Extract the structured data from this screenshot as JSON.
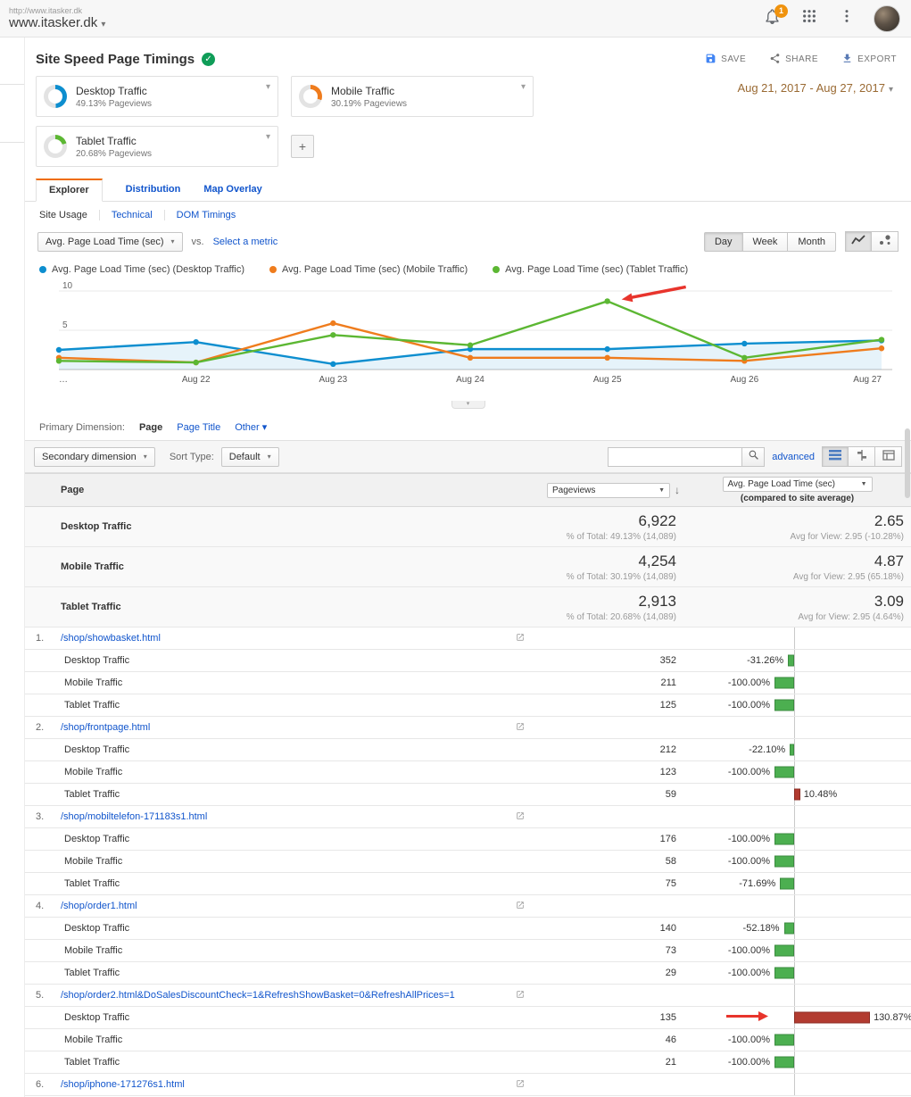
{
  "header": {
    "url": "http://www.itasker.dk",
    "account": "www.itasker.dk",
    "notification_badge": "1",
    "icons": [
      "notifications-bell-icon",
      "apps-grid-icon",
      "more-vertical-icon",
      "avatar"
    ]
  },
  "page_header": {
    "title": "Site Speed Page Timings",
    "save": "SAVE",
    "share": "SHARE",
    "export": "EXPORT"
  },
  "segments": [
    {
      "name": "Desktop Traffic",
      "detail": "49.13% Pageviews",
      "pct": 49.13,
      "color": "#0d8ecf"
    },
    {
      "name": "Mobile Traffic",
      "detail": "30.19% Pageviews",
      "pct": 30.19,
      "color": "#ef7c1d"
    },
    {
      "name": "Tablet Traffic",
      "detail": "20.68% Pageviews",
      "pct": 20.68,
      "color": "#5cb733"
    }
  ],
  "add_segment_label": "+",
  "date_range": "Aug 21, 2017 - Aug 27, 2017",
  "tabs": [
    {
      "label": "Explorer",
      "active": true
    },
    {
      "label": "Distribution",
      "active": false
    },
    {
      "label": "Map Overlay",
      "active": false
    }
  ],
  "subtabs": [
    {
      "label": "Site Usage",
      "active": true
    },
    {
      "label": "Technical",
      "active": false
    },
    {
      "label": "DOM Timings",
      "active": false
    }
  ],
  "metric_bar": {
    "metric": "Avg. Page Load Time (sec)",
    "vs": "vs.",
    "select_metric": "Select a metric",
    "granularity": [
      {
        "label": "Day",
        "active": true
      },
      {
        "label": "Week",
        "active": false
      },
      {
        "label": "Month",
        "active": false
      }
    ]
  },
  "chart_data": {
    "type": "line",
    "x": [
      "…",
      "Aug 22",
      "Aug 23",
      "Aug 24",
      "Aug 25",
      "Aug 26",
      "Aug 27"
    ],
    "ylim": [
      0,
      10
    ],
    "yticks": [
      5,
      10
    ],
    "series": [
      {
        "name": "Avg. Page Load Time (sec) (Desktop Traffic)",
        "color": "#0d8ecf",
        "area": true,
        "values": [
          2.5,
          3.5,
          0.7,
          2.6,
          2.6,
          3.3,
          3.7
        ]
      },
      {
        "name": "Avg. Page Load Time (sec) (Mobile Traffic)",
        "color": "#ef7c1d",
        "area": false,
        "values": [
          1.5,
          0.9,
          5.9,
          1.5,
          1.5,
          1.1,
          2.7
        ]
      },
      {
        "name": "Avg. Page Load Time (sec) (Tablet Traffic)",
        "color": "#5cb733",
        "area": false,
        "values": [
          1.1,
          0.9,
          4.4,
          3.1,
          8.7,
          1.5,
          3.8
        ]
      }
    ],
    "annotation": {
      "type": "arrow",
      "color": "#e8342c",
      "series_index": 2,
      "point_index": 4,
      "note": "red arrow pointing at Tablet Traffic peak on Aug 25"
    }
  },
  "primary_dimension": {
    "label": "Primary Dimension:",
    "options": [
      {
        "label": "Page",
        "active": true
      },
      {
        "label": "Page Title",
        "active": false
      },
      {
        "label": "Other",
        "active": false,
        "caret": true
      }
    ]
  },
  "toolbar": {
    "secondary_dimension": "Secondary dimension",
    "sort_type_label": "Sort Type:",
    "sort_type_value": "Default",
    "search_value": "",
    "advanced": "advanced",
    "view_icons": [
      "data-table-icon",
      "comparison-icon",
      "pivot-icon"
    ]
  },
  "table": {
    "header": {
      "page": "Page",
      "pageviews": "Pageviews",
      "metric": "Avg. Page Load Time (sec)",
      "metric_sub": "(compared to site average)"
    },
    "summary_rows": [
      {
        "name": "Desktop Traffic",
        "pageviews": "6,922",
        "pageviews_sub": "% of Total: 49.13% (14,089)",
        "value": "2.65",
        "value_sub": "Avg for View: 2.95 (-10.28%)"
      },
      {
        "name": "Mobile Traffic",
        "pageviews": "4,254",
        "pageviews_sub": "% of Total: 30.19% (14,089)",
        "value": "4.87",
        "value_sub": "Avg for View: 2.95 (65.18%)"
      },
      {
        "name": "Tablet Traffic",
        "pageviews": "2,913",
        "pageviews_sub": "% of Total: 20.68% (14,089)",
        "value": "3.09",
        "value_sub": "Avg for View: 2.95 (4.64%)"
      }
    ],
    "groups": [
      {
        "index": "1.",
        "page": "/shop/showbasket.html",
        "rows": [
          {
            "segment": "Desktop Traffic",
            "pageviews": "352",
            "pct": -31.26,
            "pct_label": "-31.26%"
          },
          {
            "segment": "Mobile Traffic",
            "pageviews": "211",
            "pct": -100,
            "pct_label": "-100.00%"
          },
          {
            "segment": "Tablet Traffic",
            "pageviews": "125",
            "pct": -100,
            "pct_label": "-100.00%"
          }
        ]
      },
      {
        "index": "2.",
        "page": "/shop/frontpage.html",
        "rows": [
          {
            "segment": "Desktop Traffic",
            "pageviews": "212",
            "pct": -22.1,
            "pct_label": "-22.10%"
          },
          {
            "segment": "Mobile Traffic",
            "pageviews": "123",
            "pct": -100,
            "pct_label": "-100.00%"
          },
          {
            "segment": "Tablet Traffic",
            "pageviews": "59",
            "pct": 10.48,
            "pct_label": "10.48%"
          }
        ]
      },
      {
        "index": "3.",
        "page": "/shop/mobiltelefon-171183s1.html",
        "rows": [
          {
            "segment": "Desktop Traffic",
            "pageviews": "176",
            "pct": -100,
            "pct_label": "-100.00%"
          },
          {
            "segment": "Mobile Traffic",
            "pageviews": "58",
            "pct": -100,
            "pct_label": "-100.00%"
          },
          {
            "segment": "Tablet Traffic",
            "pageviews": "75",
            "pct": -71.69,
            "pct_label": "-71.69%"
          }
        ]
      },
      {
        "index": "4.",
        "page": "/shop/order1.html",
        "rows": [
          {
            "segment": "Desktop Traffic",
            "pageviews": "140",
            "pct": -52.18,
            "pct_label": "-52.18%"
          },
          {
            "segment": "Mobile Traffic",
            "pageviews": "73",
            "pct": -100,
            "pct_label": "-100.00%"
          },
          {
            "segment": "Tablet Traffic",
            "pageviews": "29",
            "pct": -100,
            "pct_label": "-100.00%"
          }
        ]
      },
      {
        "index": "5.",
        "page": "/shop/order2.html&DoSalesDiscountCheck=1&RefreshShowBasket=0&RefreshAllPrices=1",
        "rows": [
          {
            "segment": "Desktop Traffic",
            "pageviews": "135",
            "pct": 130.87,
            "pct_label": "130.87%",
            "arrow": true
          },
          {
            "segment": "Mobile Traffic",
            "pageviews": "46",
            "pct": -100,
            "pct_label": "-100.00%"
          },
          {
            "segment": "Tablet Traffic",
            "pageviews": "21",
            "pct": -100,
            "pct_label": "-100.00%"
          }
        ]
      },
      {
        "index": "6.",
        "page": "/shop/iphone-171276s1.html",
        "rows": []
      }
    ]
  },
  "colors": {
    "negative_bar": "#4caf50",
    "positive_bar": "#b23b30",
    "axis": "#c9c9c9",
    "link": "#1155cc",
    "annotation_arrow": "#e8342c",
    "notification_badge": "#f0930e",
    "date_range_text": "#9a6a33",
    "active_tab_accent": "#ef6c00",
    "success_check": "#0f9d58"
  }
}
